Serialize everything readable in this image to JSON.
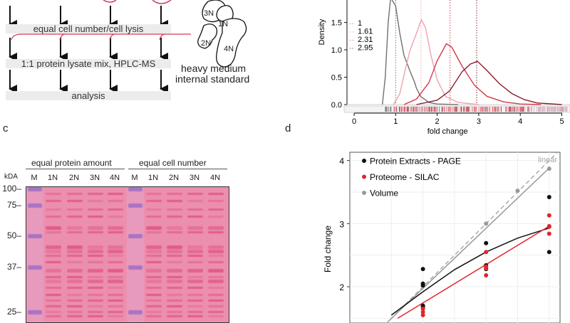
{
  "panel_a": {
    "steps": [
      "equal cell number/cell lysis",
      "1:1 protein lysate mix, HPLC-MS",
      "analysis"
    ],
    "cells": [
      "3N",
      "1N",
      "2N",
      "4N"
    ],
    "standard_label_line1": "heavy medium",
    "standard_label_line2": "internal standard",
    "line_color": "#d6375a"
  },
  "panel_c": {
    "letter": "c",
    "group_headers": [
      "equal protein amount",
      "equal cell number"
    ],
    "lanes": [
      "M",
      "1N",
      "2N",
      "3N",
      "4N",
      "M",
      "1N",
      "2N",
      "3N",
      "4N"
    ],
    "unit": "kDA",
    "markers": [
      "100",
      "75",
      "50",
      "37",
      "25"
    ],
    "gel_color": "#ec8fae",
    "marker_band_color": "#9a6bc4"
  },
  "panel_d": {
    "letter": "d"
  },
  "chart_data": [
    {
      "type": "line",
      "panel": "b",
      "xlabel": "fold change",
      "ylabel": "Density",
      "xlim": [
        -0.3,
        5.2
      ],
      "ylim": [
        0,
        1.9
      ],
      "xticks": [
        "0",
        "1",
        "2",
        "3",
        "4",
        "5"
      ],
      "yticks": [
        "0.0",
        "0.5",
        "1.0",
        "1.5"
      ],
      "legend_position": "top-left",
      "grid": false,
      "series": [
        {
          "name": "1",
          "median": 1,
          "color": "#707070",
          "points": [
            [
              0.68,
              0
            ],
            [
              0.75,
              0.5
            ],
            [
              0.82,
              1.5
            ],
            [
              0.88,
              2.1
            ],
            [
              1.0,
              1.8
            ],
            [
              1.1,
              1.3
            ],
            [
              1.2,
              0.9
            ],
            [
              1.35,
              0.6
            ],
            [
              1.45,
              0.42
            ],
            [
              1.5,
              0.3
            ],
            [
              1.6,
              0.15
            ],
            [
              1.8,
              0.04
            ],
            [
              2.0,
              0.01
            ],
            [
              2.5,
              0
            ]
          ]
        },
        {
          "name": "1.61",
          "median": 1.61,
          "color": "#f0a2aa",
          "points": [
            [
              0.95,
              0
            ],
            [
              1.1,
              0.2
            ],
            [
              1.25,
              0.7
            ],
            [
              1.35,
              1.0
            ],
            [
              1.5,
              1.3
            ],
            [
              1.62,
              1.55
            ],
            [
              1.72,
              1.4
            ],
            [
              1.85,
              0.9
            ],
            [
              2.0,
              0.45
            ],
            [
              2.2,
              0.15
            ],
            [
              2.5,
              0.04
            ],
            [
              3.0,
              0
            ]
          ]
        },
        {
          "name": "2.31",
          "median": 2.31,
          "color": "#d4394a",
          "points": [
            [
              1.2,
              0
            ],
            [
              1.5,
              0.1
            ],
            [
              1.8,
              0.4
            ],
            [
              2.0,
              0.8
            ],
            [
              2.22,
              1.11
            ],
            [
              2.35,
              1.05
            ],
            [
              2.6,
              0.7
            ],
            [
              2.9,
              0.35
            ],
            [
              3.2,
              0.15
            ],
            [
              3.6,
              0.05
            ],
            [
              4.0,
              0.01
            ],
            [
              4.5,
              0
            ]
          ]
        },
        {
          "name": "2.95",
          "median": 2.95,
          "color": "#8a1c30",
          "points": [
            [
              1.5,
              0
            ],
            [
              2.0,
              0.08
            ],
            [
              2.3,
              0.25
            ],
            [
              2.6,
              0.6
            ],
            [
              2.8,
              0.74
            ],
            [
              2.97,
              0.79
            ],
            [
              3.2,
              0.62
            ],
            [
              3.5,
              0.38
            ],
            [
              3.8,
              0.2
            ],
            [
              4.1,
              0.09
            ],
            [
              4.4,
              0.03
            ],
            [
              5.0,
              0
            ]
          ]
        }
      ]
    },
    {
      "type": "scatter",
      "panel": "d",
      "ylabel": "Fold change",
      "ylim": [
        1.5,
        4.1
      ],
      "xlim": [
        0.9,
        4.15
      ],
      "yticks": [
        "2",
        "3",
        "4"
      ],
      "grid": true,
      "legend_position": "top-left",
      "annotation": "linear",
      "series": [
        {
          "name": "Protein Extracts - PAGE",
          "color": "#111111",
          "points": [
            [
              2,
              2.28
            ],
            [
              2,
              2.05
            ],
            [
              2,
              2.02
            ],
            [
              2,
              1.7
            ],
            [
              2,
              1.68
            ],
            [
              3,
              2.69
            ],
            [
              3,
              2.34
            ],
            [
              3,
              2.28
            ],
            [
              4,
              3.42
            ],
            [
              4,
              2.55
            ]
          ],
          "fit": [
            [
              1.5,
              1.55
            ],
            [
              2,
              1.92
            ],
            [
              2.5,
              2.27
            ],
            [
              3,
              2.55
            ],
            [
              3.5,
              2.77
            ],
            [
              4,
              2.93
            ]
          ]
        },
        {
          "name": "Proteome - SILAC",
          "color": "#e0262b",
          "points": [
            [
              2,
              1.65
            ],
            [
              2,
              1.6
            ],
            [
              2,
              1.55
            ],
            [
              3,
              2.55
            ],
            [
              3,
              2.32
            ],
            [
              3,
              2.29
            ],
            [
              3,
              2.18
            ],
            [
              4,
              3.13
            ],
            [
              4,
              2.96
            ],
            [
              4,
              2.95
            ],
            [
              4,
              2.84
            ]
          ],
          "fit": [
            [
              1.6,
              1.5
            ],
            [
              4,
              2.96
            ]
          ]
        },
        {
          "name": "Volume",
          "color": "#999999",
          "points": [
            [
              2,
              2.02
            ],
            [
              3,
              3.0
            ],
            [
              3.5,
              3.52
            ],
            [
              4,
              3.87
            ]
          ],
          "fit": [
            [
              1.45,
              1.45
            ],
            [
              4,
              3.88
            ]
          ]
        }
      ]
    }
  ]
}
